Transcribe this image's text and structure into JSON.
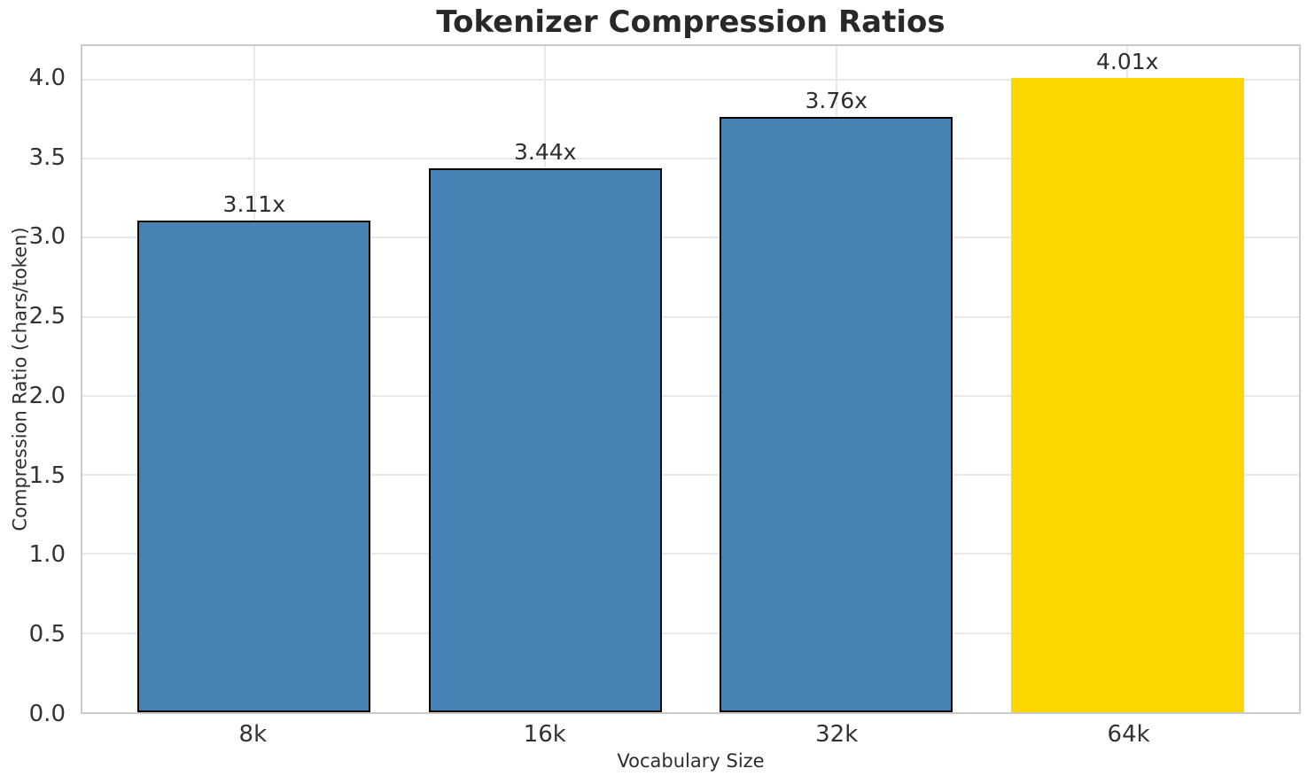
{
  "chart_data": {
    "type": "bar",
    "title": "Tokenizer Compression Ratios",
    "xlabel": "Vocabulary Size",
    "ylabel": "Compression Ratio (chars/token)",
    "categories": [
      "8k",
      "16k",
      "32k",
      "64k"
    ],
    "values": [
      3.11,
      3.44,
      3.76,
      4.01
    ],
    "bar_labels": [
      "3.11x",
      "3.44x",
      "3.76x",
      "4.01x"
    ],
    "bar_colors": [
      "#4682B4",
      "#4682B4",
      "#4682B4",
      "#FFD700"
    ],
    "bar_edge_colors": [
      "#000000",
      "#000000",
      "#000000",
      "#FFD700"
    ],
    "yticks": [
      0,
      0.5,
      1,
      1.5,
      2,
      2.5,
      3,
      3.5,
      4
    ],
    "ytick_labels": [
      "0.0",
      "0.5",
      "1.0",
      "1.5",
      "2.0",
      "2.5",
      "3.0",
      "3.5",
      "4.0"
    ],
    "ylim": [
      0,
      4.2105
    ],
    "grid": true,
    "legend_position": "none"
  },
  "colors": {
    "bar_blue": "#4682B4",
    "bar_gold": "#FFD700",
    "grid": "#e9e9e9",
    "spine": "#cccccc",
    "text": "#262626",
    "background": "#ffffff"
  }
}
